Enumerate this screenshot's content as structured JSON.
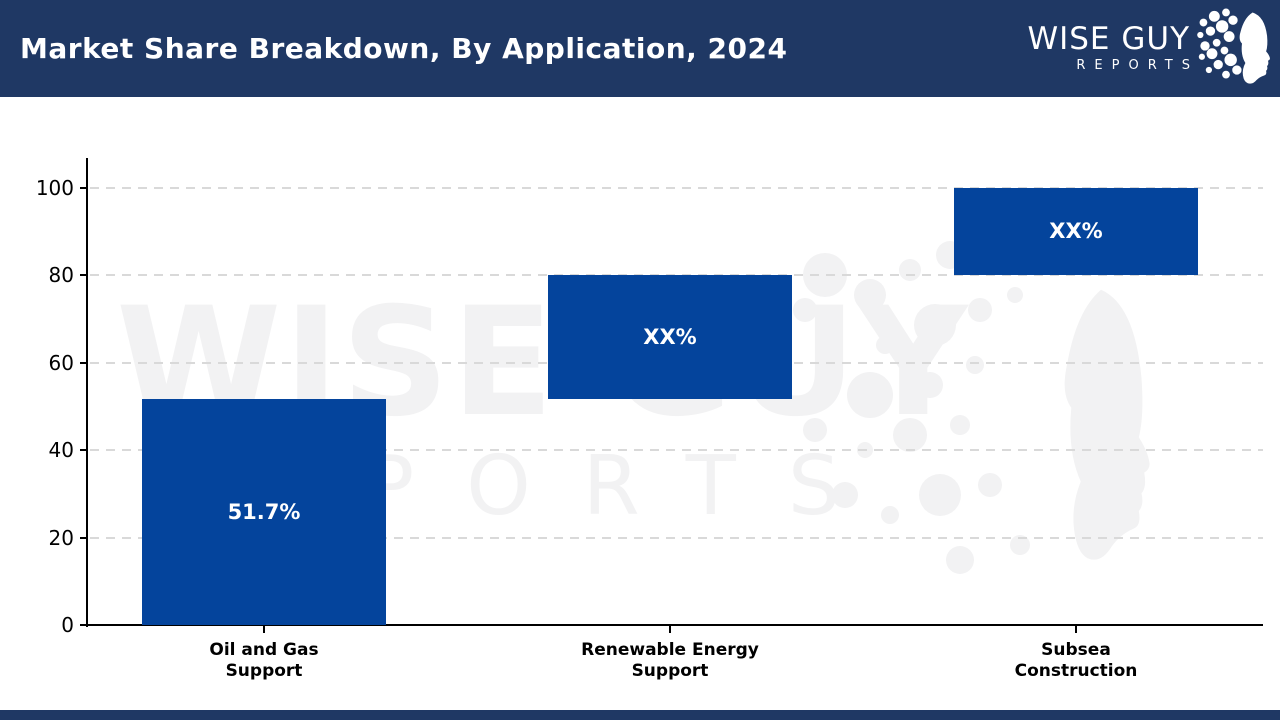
{
  "header": {
    "title": "Market Share Breakdown, By Application, 2024",
    "logo": {
      "line1": "WISE GUY",
      "line2": "REPORTS"
    }
  },
  "watermark": {
    "line1": "WISE GUY",
    "line2": "REPORTS"
  },
  "colors": {
    "header_bg": "#1f3864",
    "footer_bg": "#1f3864",
    "bar": "#04449c",
    "bar_label": "#ffffff",
    "grid": "#d9d9d9",
    "axis": "#000000",
    "watermark": "#f2f2f3"
  },
  "chart_data": {
    "type": "bar",
    "subtype": "floating-waterfall",
    "title": "Market Share Breakdown, By Application, 2024",
    "categories": [
      [
        "Oil and Gas",
        "Support"
      ],
      [
        "Renewable Energy",
        "Support"
      ],
      [
        "Subsea",
        "Construction"
      ]
    ],
    "segments": [
      {
        "category": "Oil and Gas Support",
        "start": 0,
        "end": 51.7,
        "label": "51.7%"
      },
      {
        "category": "Renewable Energy Support",
        "start": 51.7,
        "end": 80,
        "label": "XX%"
      },
      {
        "category": "Subsea Construction",
        "start": 80,
        "end": 100,
        "label": "XX%"
      }
    ],
    "xlabel": "",
    "ylabel": "",
    "yticks": [
      0,
      20,
      40,
      60,
      80,
      100
    ],
    "ylim": [
      0,
      107
    ],
    "grid": "horizontal-dashed",
    "legend": "none",
    "bar_label_note": "values shown inside bars; two bars masked as XX%"
  }
}
